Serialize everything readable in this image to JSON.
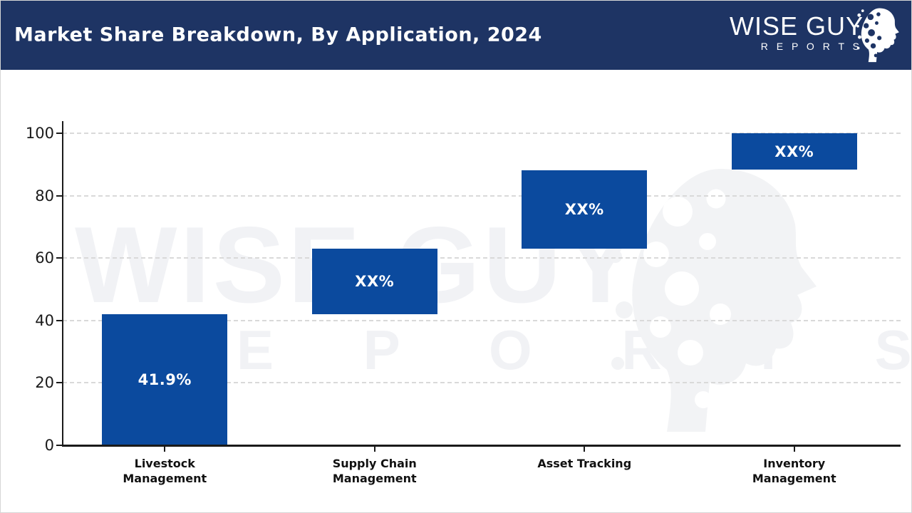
{
  "header": {
    "title": "Market Share Breakdown, By Application, 2024",
    "logo": {
      "brand": "WISE GUY",
      "sub": "R E P O R T S"
    }
  },
  "watermark": {
    "line1": "WISE GUY",
    "line2": "R E P O R T S"
  },
  "colors": {
    "header_bg": "#1e3464",
    "bar": "#0b4a9e",
    "bar_label": "#ffffff",
    "grid": "#d9d9d9",
    "axis": "#1a1a1a",
    "watermark": "#f1f2f5"
  },
  "chart_data": {
    "type": "bar",
    "subtype": "waterfall",
    "title": "Market Share Breakdown, By Application, 2024",
    "categories": [
      "Livestock Management",
      "Supply Chain Management",
      "Asset Tracking",
      "Inventory Management"
    ],
    "category_lines": [
      [
        "Livestock",
        "Management"
      ],
      [
        "Supply Chain",
        "Management"
      ],
      [
        "Asset Tracking"
      ],
      [
        "Inventory",
        "Management"
      ]
    ],
    "segments": [
      {
        "category": "Livestock Management",
        "start": 0,
        "end": 41.9,
        "label": "41.9%"
      },
      {
        "category": "Supply Chain Management",
        "start": 41.9,
        "end": 62.9,
        "label": "XX%"
      },
      {
        "category": "Asset Tracking",
        "start": 62.9,
        "end": 88.1,
        "label": "XX%"
      },
      {
        "category": "Inventory Management",
        "start": 88.3,
        "end": 100,
        "label": "XX%"
      }
    ],
    "xlabel": "",
    "ylabel": "",
    "ylim": [
      0,
      100
    ],
    "yticks": [
      0,
      20,
      40,
      60,
      80,
      100
    ],
    "grid": "horizontal-dashed",
    "legend": "none",
    "unit": "%"
  }
}
